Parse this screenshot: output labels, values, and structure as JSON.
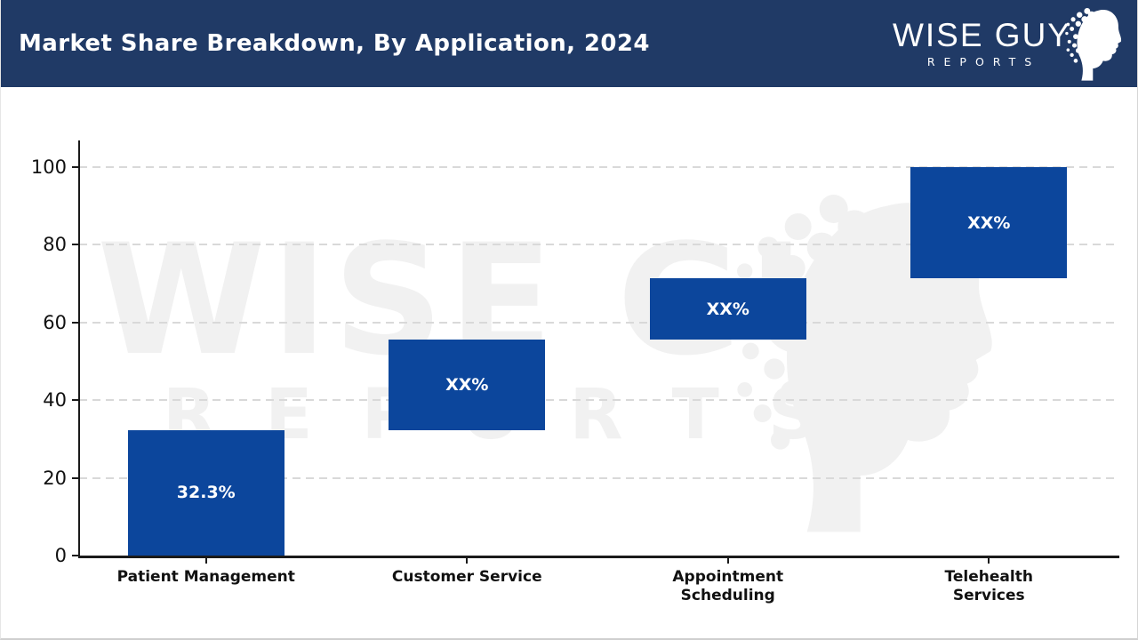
{
  "header": {
    "title": "Market Share Breakdown, By Application, 2024",
    "logo": {
      "line1": "WISE GUY",
      "line2": "REPORTS"
    }
  },
  "watermark": {
    "line1": "WISE GUY",
    "line2": "R E P O R T S"
  },
  "colors": {
    "header_bg": "#203A66",
    "bar": "#0C469C",
    "bar_label": "#FFFFFF",
    "grid": "#D9D9D9",
    "axis": "#1A1A1A",
    "watermark": "#F1F1F1",
    "page_bg": "#FFFFFF"
  },
  "chart_data": {
    "type": "bar",
    "subtype": "waterfall",
    "title": "Market Share Breakdown, By Application, 2024",
    "categories": [
      "Patient Management",
      "Customer Service",
      "Appointment\nScheduling",
      "Telehealth\nServices"
    ],
    "segments": [
      {
        "category": "Patient Management",
        "start": 0,
        "end": 32.3,
        "label": "32.3%"
      },
      {
        "category": "Customer Service",
        "start": 32.3,
        "end": 55.5,
        "label": "XX%"
      },
      {
        "category": "Appointment Scheduling",
        "start": 55.5,
        "end": 71.3,
        "label": "XX%"
      },
      {
        "category": "Telehealth Services",
        "start": 71.3,
        "end": 100,
        "label": "XX%"
      }
    ],
    "yticks": [
      0,
      20,
      40,
      60,
      80,
      100
    ],
    "ylim": [
      0,
      105
    ],
    "xlabel": "",
    "ylabel": "",
    "grid": "horizontal-dashed",
    "legend": "none"
  }
}
